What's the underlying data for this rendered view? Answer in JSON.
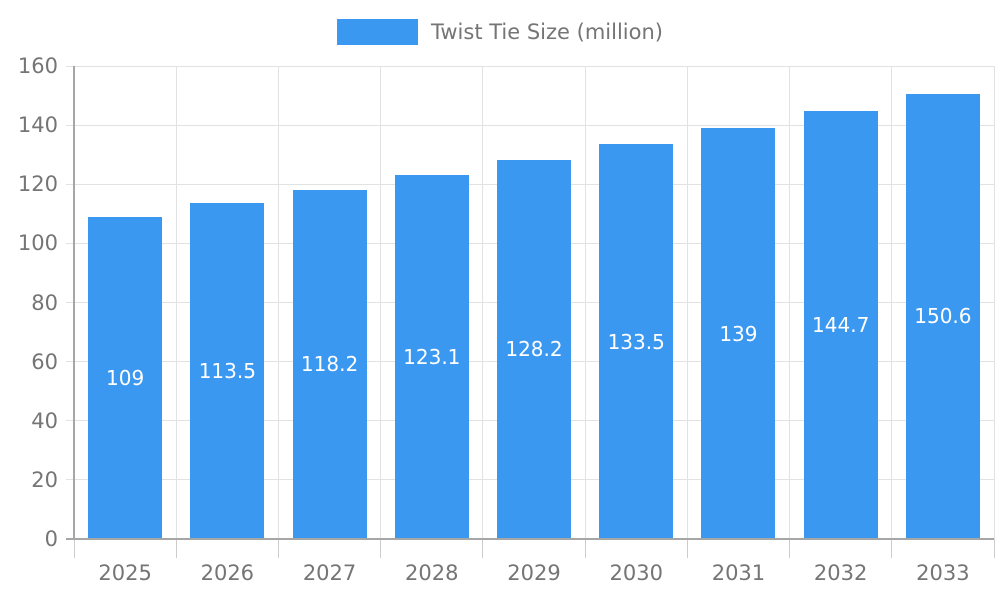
{
  "legend": {
    "label": "Twist Tie Size (million)"
  },
  "colors": {
    "bar": "#3B98F1",
    "axis": "#a6a6a6",
    "grid": "#e2e2e2",
    "tick": "#cccccc",
    "text": "#757575",
    "value_label": "#ffffff",
    "background": "#ffffff"
  },
  "chart_data": {
    "type": "bar",
    "title": "",
    "categories": [
      "2025",
      "2026",
      "2027",
      "2028",
      "2029",
      "2030",
      "2031",
      "2032",
      "2033"
    ],
    "series": [
      {
        "name": "Twist Tie Size (million)",
        "values": [
          109,
          113.5,
          118.2,
          123.1,
          128.2,
          133.5,
          139,
          144.7,
          150.6
        ]
      }
    ],
    "xlabel": "",
    "ylabel": "",
    "ylim": [
      0,
      160
    ],
    "ytick_step": 20,
    "yticks": [
      0,
      20,
      40,
      60,
      80,
      100,
      120,
      140,
      160
    ],
    "grid": true,
    "legend_position": "top-center",
    "value_labels": "inside-center"
  }
}
